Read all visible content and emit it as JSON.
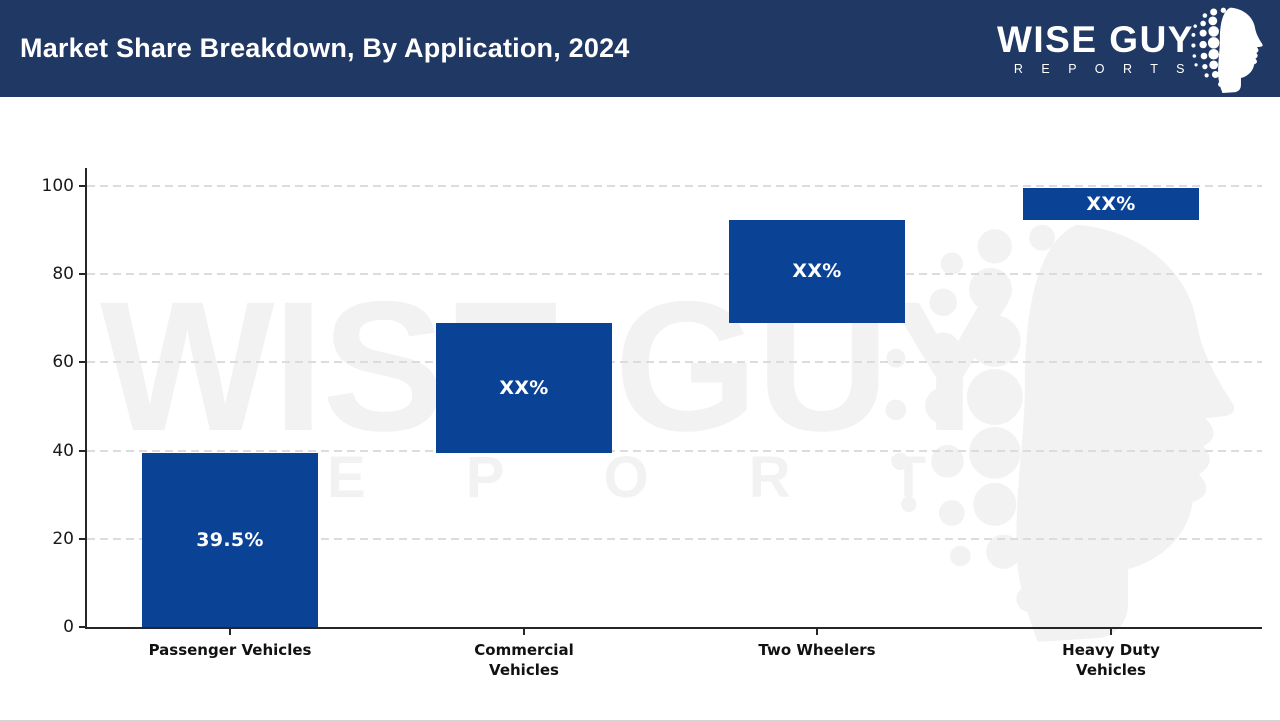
{
  "header": {
    "title": "Market Share Breakdown, By Application, 2024",
    "logo": {
      "line1": "WISE GUY",
      "line2": "R E P O R T S"
    }
  },
  "watermark": {
    "line1": "WISE GUY",
    "line2": "R E P O R T S"
  },
  "colors": {
    "header_bg": "#203864",
    "bar_blue": "#0a4296",
    "bar_label": "#ffffff",
    "watermark_gray": "#f2f2f2",
    "grid_gray": "#dcdcdc",
    "axis_dark": "#262626"
  },
  "chart_data": {
    "type": "bar",
    "subtype": "floating-waterfall",
    "title": "Market Share Breakdown, By Application, 2024",
    "xlabel": "",
    "ylabel": "",
    "ylim": [
      0,
      100
    ],
    "yticks": [
      0,
      20,
      40,
      60,
      80,
      100
    ],
    "grid": "horizontal dashed",
    "legend": "none",
    "categories": [
      "Passenger Vehicles",
      "Commercial Vehicles",
      "Two Wheelers",
      "Heavy Duty Vehicles"
    ],
    "category_label_lines": [
      [
        "Passenger Vehicles"
      ],
      [
        "Commercial",
        "Vehicles"
      ],
      [
        "Two Wheelers"
      ],
      [
        "Heavy Duty",
        "Vehicles"
      ]
    ],
    "segments": [
      {
        "category": "Passenger Vehicles",
        "start": 0,
        "end": 39.5,
        "label": "39.5%"
      },
      {
        "category": "Commercial Vehicles",
        "start": 39.5,
        "end": 69.0,
        "label": "XX%"
      },
      {
        "category": "Two Wheelers",
        "start": 69.0,
        "end": 92.3,
        "label": "XX%"
      },
      {
        "category": "Heavy Duty Vehicles",
        "start": 92.3,
        "end": 99.5,
        "label": "XX%"
      }
    ]
  }
}
